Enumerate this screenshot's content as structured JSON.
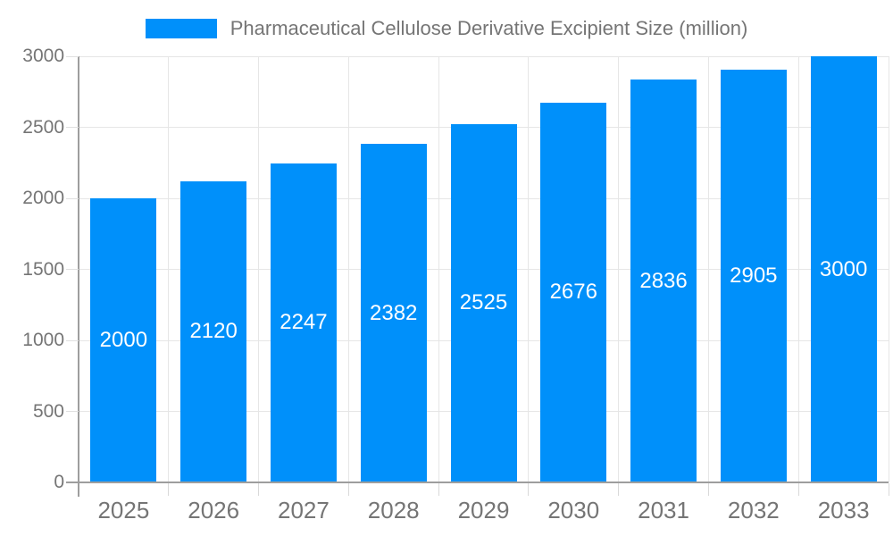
{
  "chart_data": {
    "type": "bar",
    "title": "Pharmaceutical Cellulose Derivative Excipient Size (million)",
    "legend": {
      "position": "top",
      "label": "Pharmaceutical Cellulose Derivative Excipient Size (million)",
      "marker": "rectangle"
    },
    "categories": [
      "2025",
      "2026",
      "2027",
      "2028",
      "2029",
      "2030",
      "2031",
      "2032",
      "2033"
    ],
    "values": [
      2000,
      2120,
      2247,
      2382,
      2525,
      2676,
      2836,
      2905,
      3000
    ],
    "xlabel": "",
    "ylabel": "",
    "ylim": [
      0,
      3000
    ],
    "y_ticks": [
      0,
      500,
      1000,
      1500,
      2000,
      2500,
      3000
    ],
    "grid": true,
    "value_labels_position": "inside-center",
    "colors": {
      "bar": "#0090fa",
      "value_label_text": "#ffffff",
      "axis_label_text": "#757575",
      "legend_text": "#757575",
      "axis_line": "#9e9e9e",
      "gridline": "#e6e6e6",
      "background": "#ffffff"
    }
  }
}
